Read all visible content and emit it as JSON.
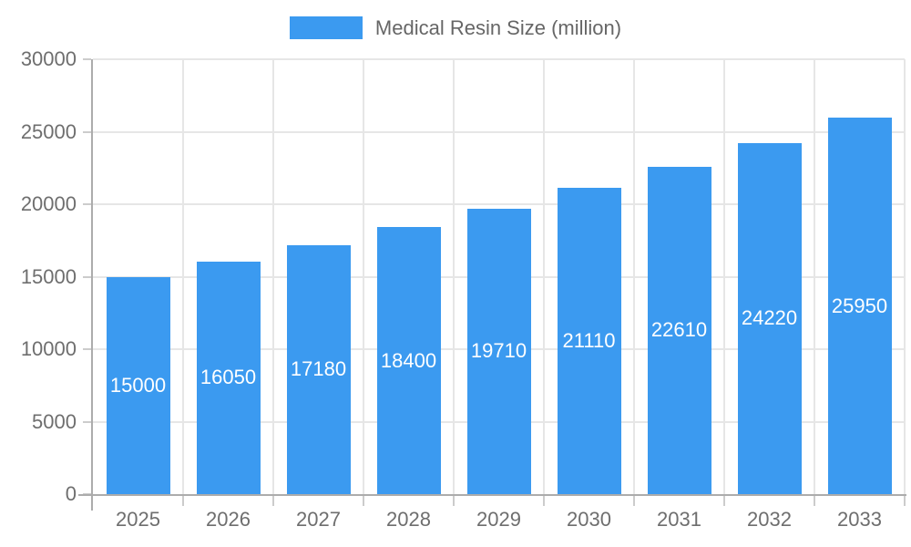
{
  "legend": {
    "label": "Medical Resin Size (million)"
  },
  "colors": {
    "bar": "#3B9AF0",
    "grid": "#E6E6E6",
    "axis_line": "#ACACAC",
    "tick_mark": "#CCCCCC",
    "axis_text": "#6E6E6E",
    "legend_text": "#666666",
    "bar_value_text": "#FFFFFF",
    "background": "#FFFFFF"
  },
  "chart_data": {
    "type": "bar",
    "title": "Medical Resin Size (million)",
    "categories": [
      "2025",
      "2026",
      "2027",
      "2028",
      "2029",
      "2030",
      "2031",
      "2032",
      "2033"
    ],
    "values": [
      15000,
      16050,
      17180,
      18400,
      19710,
      21110,
      22610,
      24220,
      25950
    ],
    "series": [
      {
        "name": "Medical Resin Size (million)",
        "values": [
          15000,
          16050,
          17180,
          18400,
          19710,
          21110,
          22610,
          24220,
          25950
        ]
      }
    ],
    "xlabel": "",
    "ylabel": "",
    "ylim": [
      0,
      30000
    ],
    "yticks": [
      0,
      5000,
      10000,
      15000,
      20000,
      25000,
      30000
    ],
    "grid": "horizontal and vertical light-gray gridlines",
    "legend_position": "top-center",
    "value_labels": "white, centered inside each bar"
  }
}
